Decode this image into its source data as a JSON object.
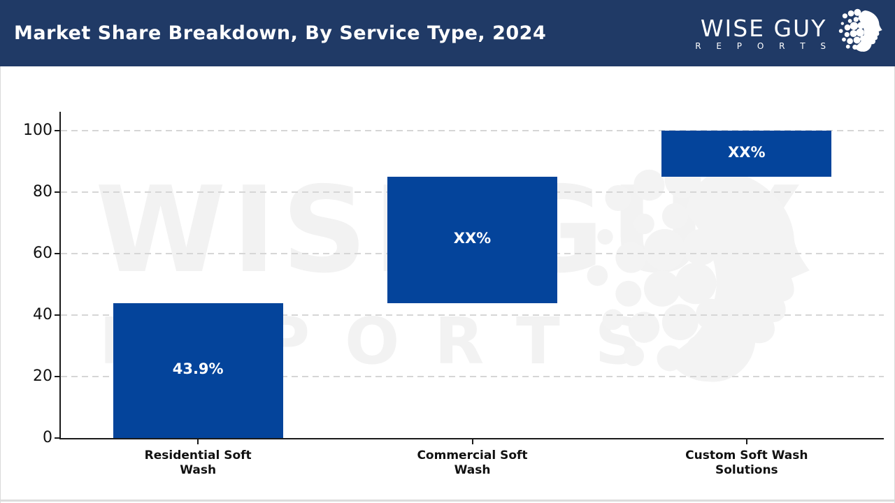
{
  "header": {
    "title": "Market Share Breakdown, By Service Type, 2024",
    "bg_color": "#203A66",
    "logo": {
      "line1": "WISE GUY",
      "line2": "R E P O R T S"
    }
  },
  "watermark": {
    "line1": "WISE GUY",
    "line2": "REPORTS"
  },
  "chart_data": {
    "type": "bar",
    "variant": "waterfall-floating-bars",
    "title": "Market Share Breakdown, By Service Type, 2024",
    "categories": [
      "Residential Soft\nWash",
      "Commercial Soft\nWash",
      "Custom Soft Wash\nSolutions"
    ],
    "segments": [
      {
        "category": "Residential Soft Wash",
        "start": 0,
        "end": 43.9,
        "label": "43.9%"
      },
      {
        "category": "Commercial Soft Wash",
        "start": 43.9,
        "end": 85,
        "label": "XX%"
      },
      {
        "category": "Custom Soft Wash Solutions",
        "start": 85,
        "end": 100,
        "label": "XX%"
      }
    ],
    "xlabel": "",
    "ylabel": "",
    "ylim": [
      0,
      100
    ],
    "yticks": [
      0,
      20,
      40,
      60,
      80,
      100
    ],
    "grid": "horizontal-dashed",
    "legend": "none",
    "bar_color": "#04449B",
    "bar_label_color": "#FFFFFF",
    "axis_color": "#1a1a1a"
  }
}
